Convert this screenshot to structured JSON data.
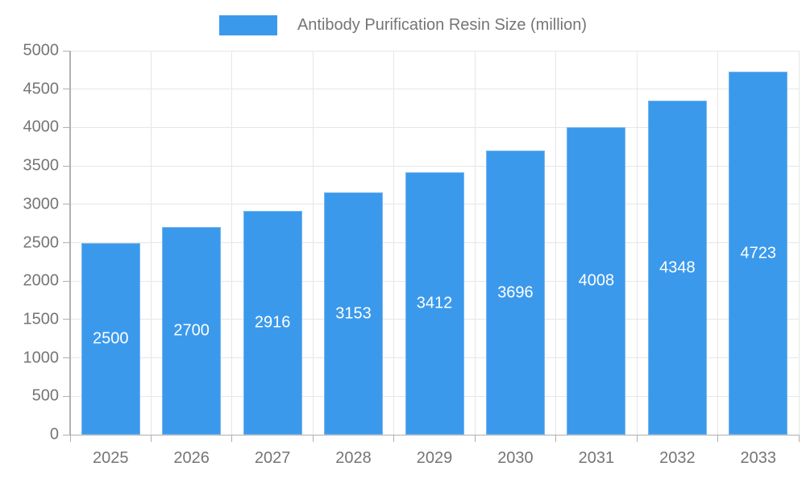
{
  "chart_data": {
    "type": "bar",
    "title": "Antibody Purification Resin Size (million)",
    "categories": [
      "2025",
      "2026",
      "2027",
      "2028",
      "2029",
      "2030",
      "2031",
      "2032",
      "2033"
    ],
    "values": [
      2500,
      2700,
      2916,
      3153,
      3412,
      3696,
      4008,
      4348,
      4723
    ],
    "xlabel": "",
    "ylabel": "",
    "ylim": [
      0,
      5000
    ],
    "ytick_step": 500,
    "ytick_labels": [
      "0",
      "500",
      "1000",
      "1500",
      "2000",
      "2500",
      "3000",
      "3500",
      "4000",
      "4500",
      "5000"
    ],
    "grid": true,
    "legend_position": "top",
    "colors": {
      "bar_fill": "#3B99EC",
      "bar_border": "#74B6F1",
      "bar_value_text": "#ffffff",
      "axis_line": "#b0b0b0",
      "grid_line": "#e6e6e6",
      "tick_text": "#757575",
      "legend_text": "#757575",
      "background": "#ffffff"
    }
  }
}
